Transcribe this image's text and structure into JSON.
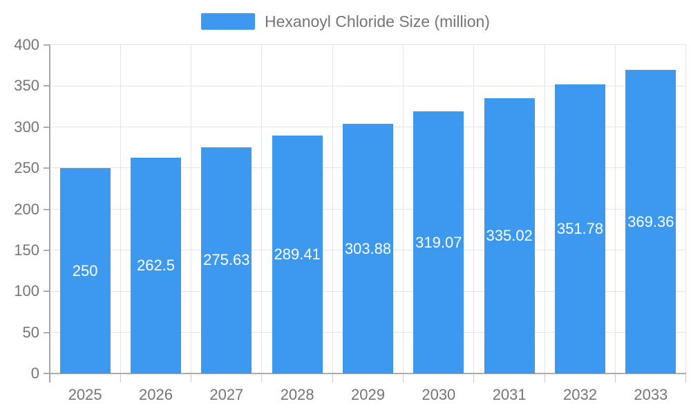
{
  "legend": {
    "label": "Hexanoyl Chloride Size (million)"
  },
  "colors": {
    "bar": "#3C99EE",
    "bar_label": "#FFFFFF",
    "grid": "#E4E4E4",
    "axis": "#A9A9A9",
    "text": "#757575"
  },
  "chart_data": {
    "type": "bar",
    "title": "",
    "series_name": "Hexanoyl Chloride Size (million)",
    "categories": [
      "2025",
      "2026",
      "2027",
      "2028",
      "2029",
      "2030",
      "2031",
      "2032",
      "2033"
    ],
    "values": [
      250,
      262.5,
      275.63,
      289.41,
      303.88,
      319.07,
      335.02,
      351.78,
      369.36
    ],
    "value_labels": [
      "250",
      "262.5",
      "275.63",
      "289.41",
      "303.88",
      "319.07",
      "335.02",
      "351.78",
      "369.36"
    ],
    "xlabel": "",
    "ylabel": "",
    "ylim": [
      0,
      400
    ],
    "y_ticks": [
      0,
      50,
      100,
      150,
      200,
      250,
      300,
      350,
      400
    ],
    "grid": true,
    "legend_position": "top-center",
    "value_label_position": "inside-center"
  }
}
